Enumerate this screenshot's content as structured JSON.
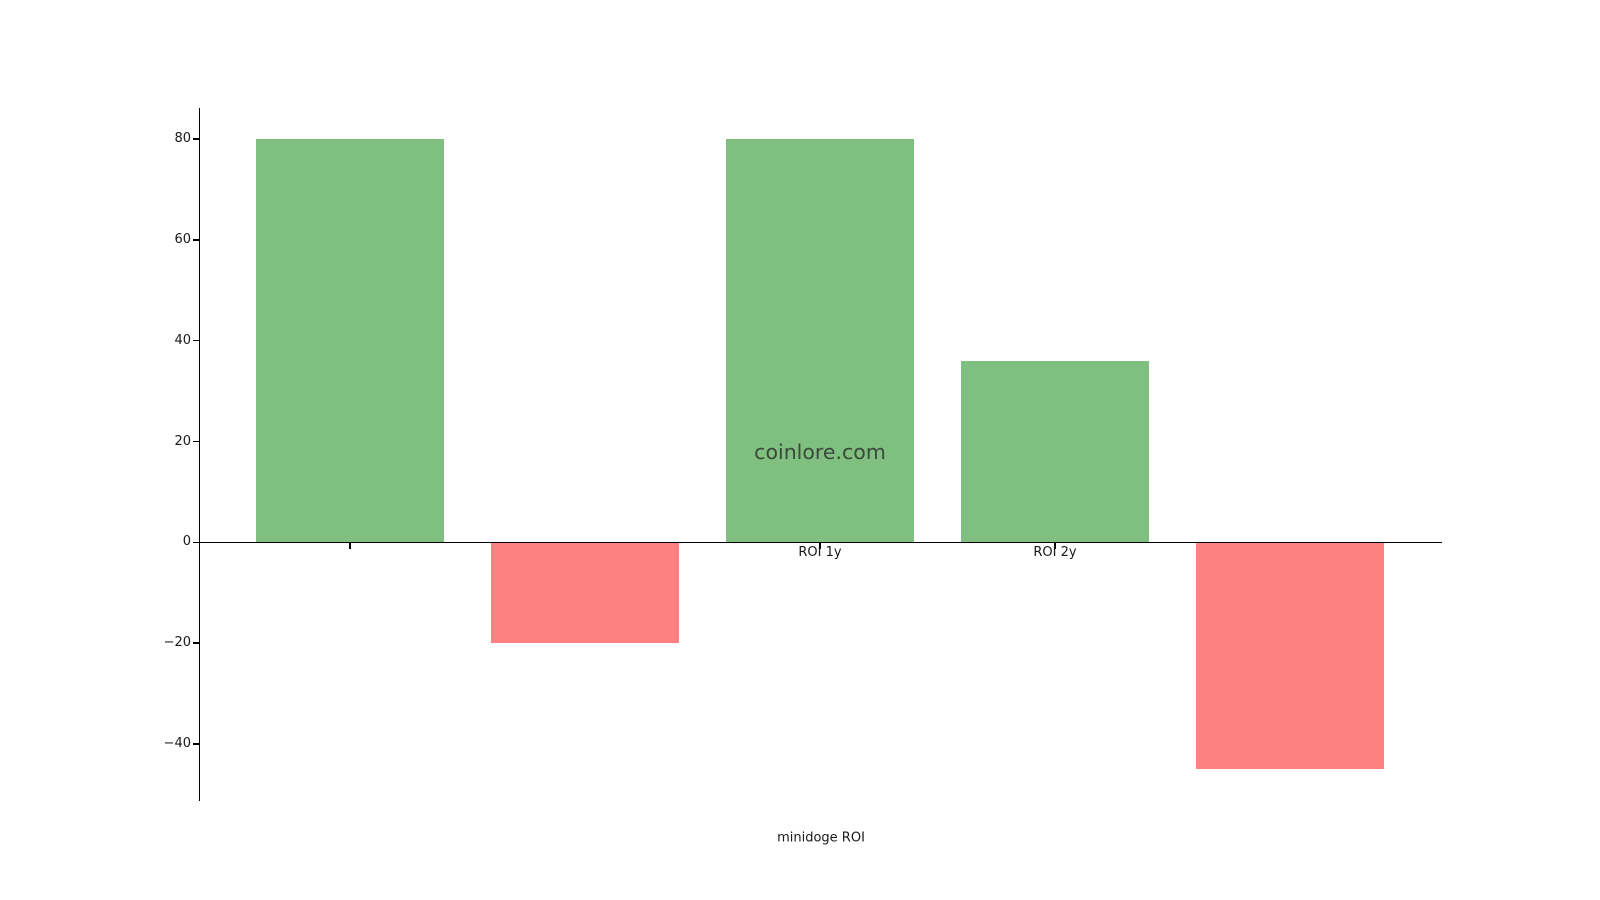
{
  "chart_data": {
    "type": "bar",
    "title": "minidoge ROI",
    "watermark": "coinlore.com",
    "categories": [
      "",
      "",
      "ROI 1y",
      "ROI 2y",
      ""
    ],
    "series": [
      {
        "name": "minidoge ROI",
        "values": [
          80,
          -20,
          80,
          36,
          -45
        ]
      }
    ],
    "values": [
      80,
      -20,
      80,
      36,
      -45
    ],
    "bar_colors": [
      "#7fbf7f",
      "#fd8181",
      "#7fbf7f",
      "#7fbf7f",
      "#fd8181"
    ],
    "positive_color": "#7fbf7f",
    "negative_color": "#fd8181",
    "y_ticks": [
      80,
      60,
      40,
      20,
      0,
      -20,
      -40
    ],
    "y_tick_labels": [
      "80",
      "60",
      "40",
      "20",
      "0",
      "−20",
      "−40"
    ],
    "ylim": [
      -51.3,
      86.2
    ],
    "xlabel": "",
    "ylabel": "",
    "grid": false,
    "legend": "none",
    "notes": "Baseline axis drawn at y=0; x tick labels beneath the negative (red) bars are covered by the bars; first category tick has no visible label."
  }
}
